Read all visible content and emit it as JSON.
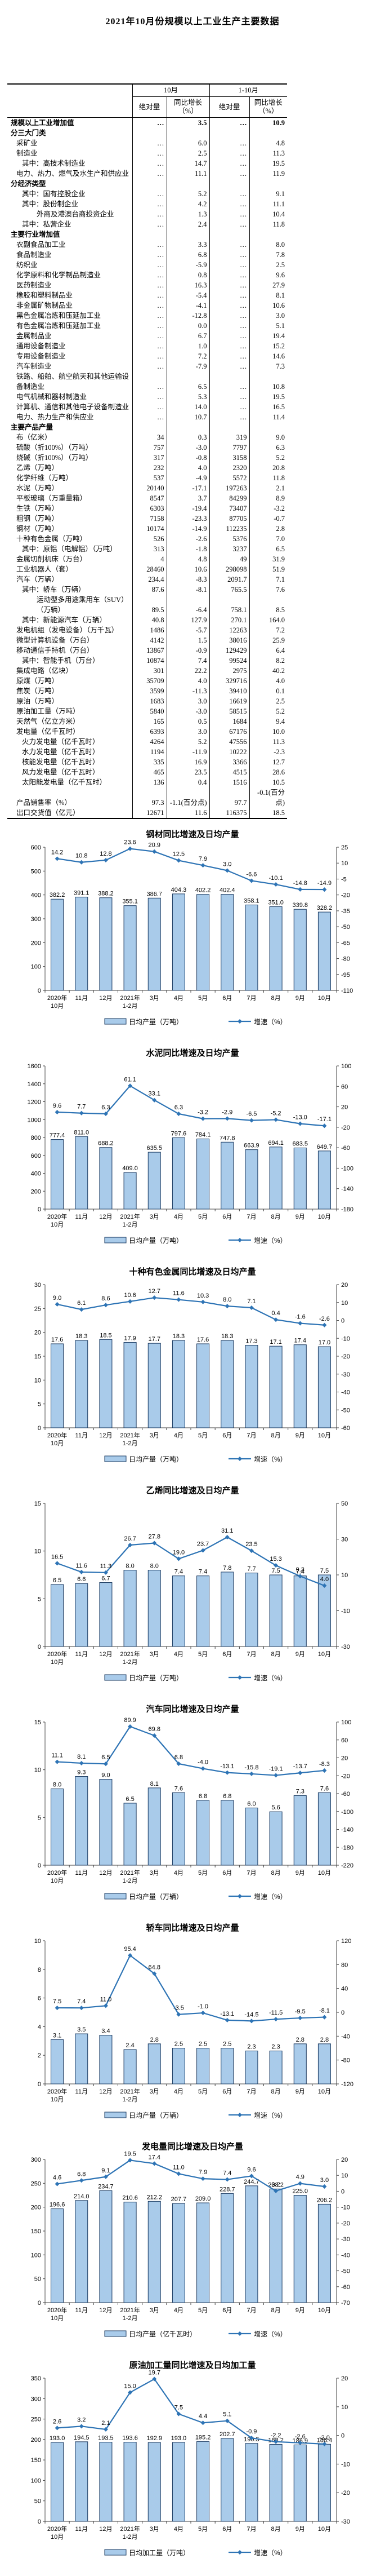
{
  "page": {
    "title": "2021年10月份规模以上工业生产主要数据"
  },
  "colors": {
    "bar_fill": "#A9CBEA",
    "bar_stroke": "#17375E",
    "line": "#2E74B5",
    "axis": "#404040",
    "text": "#000000"
  },
  "table": {
    "header": {
      "groups": [
        "10月",
        "1-10月"
      ],
      "sub": [
        "绝对量",
        "同比增长\n（%）",
        "绝对量",
        "同比增长\n（%）"
      ]
    },
    "rows": [
      [
        0,
        1,
        "规模以上工业增加值",
        "…",
        "3.5",
        "…",
        "10.9"
      ],
      [
        0,
        1,
        "分三大门类",
        "",
        "",
        "",
        ""
      ],
      [
        1,
        0,
        "采矿业",
        "…",
        "6.0",
        "…",
        "4.8"
      ],
      [
        1,
        0,
        "制造业",
        "…",
        "2.5",
        "…",
        "11.3"
      ],
      [
        2,
        0,
        "其中：高技术制造业",
        "…",
        "14.7",
        "…",
        "19.5"
      ],
      [
        1,
        0,
        "电力、热力、燃气及水生产和供应业",
        "…",
        "11.1",
        "…",
        "11.9"
      ],
      [
        0,
        1,
        "分经济类型",
        "",
        "",
        "",
        ""
      ],
      [
        2,
        0,
        "其中：国有控股企业",
        "…",
        "5.2",
        "…",
        "9.1"
      ],
      [
        2,
        0,
        "其中：股份制企业",
        "…",
        "4.2",
        "…",
        "11.1"
      ],
      [
        3,
        0,
        "外商及港澳台商投资企业",
        "…",
        "1.3",
        "…",
        "10.4"
      ],
      [
        2,
        0,
        "其中：私营企业",
        "…",
        "2.4",
        "…",
        "11.8"
      ],
      [
        0,
        1,
        "主要行业增加值",
        "",
        "",
        "",
        ""
      ],
      [
        1,
        0,
        "农副食品加工业",
        "…",
        "3.3",
        "…",
        "8.0"
      ],
      [
        1,
        0,
        "食品制造业",
        "…",
        "6.8",
        "…",
        "7.8"
      ],
      [
        1,
        0,
        "纺织业",
        "…",
        "-5.9",
        "…",
        "2.5"
      ],
      [
        1,
        0,
        "化学原料和化学制品制造业",
        "…",
        "0.8",
        "…",
        "9.6"
      ],
      [
        1,
        0,
        "医药制造业",
        "…",
        "16.3",
        "…",
        "27.9"
      ],
      [
        1,
        0,
        "橡胶和塑料制品业",
        "…",
        "-5.4",
        "…",
        "8.1"
      ],
      [
        1,
        0,
        "非金属矿物制品业",
        "…",
        "-4.1",
        "…",
        "10.6"
      ],
      [
        1,
        0,
        "黑色金属冶炼和压延加工业",
        "…",
        "-12.8",
        "…",
        "3.0"
      ],
      [
        1,
        0,
        "有色金属冶炼和压延加工业",
        "…",
        "0.0",
        "…",
        "5.1"
      ],
      [
        1,
        0,
        "金属制品业",
        "…",
        "6.7",
        "…",
        "19.4"
      ],
      [
        1,
        0,
        "通用设备制造业",
        "…",
        "1.0",
        "…",
        "15.2"
      ],
      [
        1,
        0,
        "专用设备制造业",
        "…",
        "7.2",
        "…",
        "14.6"
      ],
      [
        1,
        0,
        "汽车制造业",
        "…",
        "-7.9",
        "…",
        "7.3"
      ],
      [
        1,
        0,
        "铁路、船舶、航空航天和其他运输设备制造业",
        "…",
        "6.5",
        "…",
        "10.8"
      ],
      [
        1,
        0,
        "电气机械和器材制造业",
        "…",
        "5.3",
        "…",
        "19.5"
      ],
      [
        1,
        0,
        "计算机、通信和其他电子设备制造业",
        "…",
        "14.0",
        "…",
        "16.5"
      ],
      [
        1,
        0,
        "电力、热力生产和供应业",
        "…",
        "10.7",
        "…",
        "11.4"
      ],
      [
        0,
        1,
        "主要产品产量",
        "",
        "",
        "",
        ""
      ],
      [
        1,
        0,
        "布（亿米）",
        "34",
        "0.3",
        "319",
        "9.0"
      ],
      [
        1,
        0,
        "硫酸（折100%）（万吨）",
        "757",
        "-3.0",
        "7797",
        "6.3"
      ],
      [
        1,
        0,
        "烧碱（折100%）（万吨）",
        "317",
        "-0.8",
        "3158",
        "5.2"
      ],
      [
        1,
        0,
        "乙烯（万吨）",
        "232",
        "4.0",
        "2320",
        "20.8"
      ],
      [
        1,
        0,
        "化学纤维（万吨）",
        "537",
        "-4.9",
        "5572",
        "11.8"
      ],
      [
        1,
        0,
        "水泥（万吨）",
        "20140",
        "-17.1",
        "197263",
        "2.1"
      ],
      [
        1,
        0,
        "平板玻璃（万重量箱）",
        "8547",
        "3.7",
        "84299",
        "8.9"
      ],
      [
        1,
        0,
        "生铁（万吨）",
        "6303",
        "-19.4",
        "73407",
        "-3.2"
      ],
      [
        1,
        0,
        "粗钢（万吨）",
        "7158",
        "-23.3",
        "87705",
        "-0.7"
      ],
      [
        1,
        0,
        "钢材（万吨）",
        "10174",
        "-14.9",
        "112235",
        "2.8"
      ],
      [
        1,
        0,
        "十种有色金属（万吨）",
        "526",
        "-2.6",
        "5376",
        "7.0"
      ],
      [
        2,
        0,
        "其中：原铝（电解铝）（万吨）",
        "313",
        "-1.8",
        "3237",
        "6.5"
      ],
      [
        1,
        0,
        "金属切削机床（万台）",
        "4",
        "4.8",
        "49",
        "31.9"
      ],
      [
        1,
        0,
        "工业机器人（套）",
        "28460",
        "10.6",
        "298098",
        "51.9"
      ],
      [
        1,
        0,
        "汽车（万辆）",
        "234.4",
        "-8.3",
        "2091.7",
        "7.1"
      ],
      [
        2,
        0,
        "其中：轿车（万辆）",
        "87.6",
        "-8.1",
        "765.5",
        "7.6"
      ],
      [
        3,
        0,
        "运动型多用途乘用车（SUV）（万辆）",
        "89.5",
        "-6.4",
        "758.1",
        "8.5"
      ],
      [
        2,
        0,
        "其中：新能源汽车（万辆）",
        "40.8",
        "127.9",
        "270.1",
        "164.0"
      ],
      [
        1,
        0,
        "发电机组（发电设备）（万千瓦）",
        "1486",
        "-5.7",
        "12263",
        "7.2"
      ],
      [
        1,
        0,
        "微型计算机设备（万台）",
        "4142",
        "1.5",
        "38016",
        "25.9"
      ],
      [
        1,
        0,
        "移动通信手持机（万台）",
        "13867",
        "-0.9",
        "129429",
        "6.4"
      ],
      [
        2,
        0,
        "其中：智能手机（万台）",
        "10874",
        "7.4",
        "99524",
        "8.2"
      ],
      [
        1,
        0,
        "集成电路（亿块）",
        "301",
        "22.2",
        "2975",
        "40.2"
      ],
      [
        1,
        0,
        "原煤（万吨）",
        "35709",
        "4.0",
        "329716",
        "4.0"
      ],
      [
        1,
        0,
        "焦炭（万吨）",
        "3599",
        "-11.3",
        "39410",
        "0.1"
      ],
      [
        1,
        0,
        "原油（万吨）",
        "1683",
        "3.0",
        "16619",
        "2.5"
      ],
      [
        1,
        0,
        "原油加工量（万吨）",
        "5840",
        "-3.0",
        "58515",
        "5.2"
      ],
      [
        1,
        0,
        "天然气（亿立方米）",
        "165",
        "0.5",
        "1684",
        "9.4"
      ],
      [
        1,
        0,
        "发电量（亿千瓦时）",
        "6393",
        "3.0",
        "67176",
        "10.0"
      ],
      [
        2,
        0,
        "火力发电量（亿千瓦时）",
        "4264",
        "5.2",
        "47556",
        "11.3"
      ],
      [
        2,
        0,
        "水力发电量（亿千瓦时）",
        "1194",
        "-11.9",
        "10222",
        "-2.3"
      ],
      [
        2,
        0,
        "核能发电量（亿千瓦时）",
        "335",
        "16.9",
        "3366",
        "12.7"
      ],
      [
        2,
        0,
        "风力发电量（亿千瓦时）",
        "465",
        "23.5",
        "4515",
        "28.6"
      ],
      [
        2,
        0,
        "太阳能发电量（亿千瓦时）",
        "136",
        "0.4",
        "1516",
        "10.5"
      ],
      [
        1,
        0,
        "产品销售率（%）",
        "97.3",
        "-1.1(百分点)",
        "97.7",
        "-0.1(百分点)"
      ],
      [
        1,
        0,
        "出口交货值（亿元）",
        "12671",
        "11.6",
        "116375",
        "18.5"
      ]
    ]
  },
  "chart_data": [
    {
      "type": "bar+line",
      "title": "钢材同比增速及日均产量",
      "categories": [
        [
          "2020年",
          "10月"
        ],
        [
          "11月"
        ],
        [
          "12月"
        ],
        [
          "2021年",
          "1-2月"
        ],
        [
          "3月"
        ],
        [
          "4月"
        ],
        [
          "5月"
        ],
        [
          "6月"
        ],
        [
          "7月"
        ],
        [
          "8月"
        ],
        [
          "9月"
        ],
        [
          "10月"
        ]
      ],
      "bar_series": {
        "name": "日均产量（万吨）",
        "values": [
          "382.2",
          "391.1",
          "388.2",
          "355.1",
          "386.7",
          "404.3",
          "402.2",
          "402.4",
          "358.1",
          "351.0",
          "339.8",
          "328.2"
        ]
      },
      "line_series": {
        "name": "增速（%）",
        "values": [
          "14.2",
          "10.8",
          "12.8",
          "23.6",
          "20.9",
          "12.5",
          "7.9",
          "3.0",
          "-6.6",
          "-10.1",
          "-14.8",
          "-14.9"
        ]
      },
      "left_ticks": [
        600,
        500,
        400,
        300,
        200,
        100,
        0
      ],
      "right_ticks": [
        25,
        10,
        -5,
        -20,
        -35,
        -50,
        -65,
        -80,
        -95,
        -110
      ]
    },
    {
      "type": "bar+line",
      "title": "水泥同比增速及日均产量",
      "categories": [
        [
          "2020年",
          "10月"
        ],
        [
          "11月"
        ],
        [
          "12月"
        ],
        [
          "2021年",
          "1-2月"
        ],
        [
          "3月"
        ],
        [
          "4月"
        ],
        [
          "5月"
        ],
        [
          "6月"
        ],
        [
          "7月"
        ],
        [
          "8月"
        ],
        [
          "9月"
        ],
        [
          "10月"
        ]
      ],
      "bar_series": {
        "name": "日均产量（万吨）",
        "values": [
          "777.4",
          "811.0",
          "688.2",
          "409.0",
          "635.5",
          "797.6",
          "784.1",
          "747.8",
          "663.9",
          "694.1",
          "683.5",
          "649.7"
        ]
      },
      "line_series": {
        "name": "增速（%）",
        "values": [
          "9.6",
          "7.7",
          "6.3",
          "61.1",
          "33.1",
          "6.3",
          "-3.2",
          "-2.9",
          "-6.5",
          "-5.2",
          "-13.0",
          "-17.1"
        ]
      },
      "left_ticks": [
        1600,
        1400,
        1200,
        1000,
        800,
        600,
        400,
        200,
        0
      ],
      "right_ticks": [
        100,
        60,
        20,
        -20,
        -60,
        -100,
        -140,
        -180
      ]
    },
    {
      "type": "bar+line",
      "title": "十种有色金属同比增速及日均产量",
      "categories": [
        [
          "2020年",
          "10月"
        ],
        [
          "11月"
        ],
        [
          "12月"
        ],
        [
          "2021年",
          "1-2月"
        ],
        [
          "3月"
        ],
        [
          "4月"
        ],
        [
          "5月"
        ],
        [
          "6月"
        ],
        [
          "7月"
        ],
        [
          "8月"
        ],
        [
          "9月"
        ],
        [
          "10月"
        ]
      ],
      "bar_series": {
        "name": "日均产量（万吨）",
        "values": [
          "17.6",
          "18.3",
          "18.5",
          "17.9",
          "17.7",
          "18.3",
          "17.6",
          "18.3",
          "17.3",
          "17.1",
          "17.4",
          "17.0"
        ]
      },
      "line_series": {
        "name": "增速（%）",
        "values": [
          "9.0",
          "6.1",
          "8.6",
          "10.6",
          "12.7",
          "11.6",
          "10.3",
          "8.0",
          "7.1",
          "0.4",
          "-1.6",
          "-2.6"
        ]
      },
      "left_ticks": [
        30,
        25,
        20,
        15,
        10,
        5,
        0
      ],
      "right_ticks": [
        20,
        10,
        0,
        -10,
        -20,
        -30,
        -40,
        -50,
        -60
      ]
    },
    {
      "type": "bar+line",
      "title": "乙烯同比增速及日均产量",
      "categories": [
        [
          "2020年",
          "10月"
        ],
        [
          "11月"
        ],
        [
          "12月"
        ],
        [
          "2021年",
          "1-2月"
        ],
        [
          "3月"
        ],
        [
          "4月"
        ],
        [
          "5月"
        ],
        [
          "6月"
        ],
        [
          "7月"
        ],
        [
          "8月"
        ],
        [
          "9月"
        ],
        [
          "10月"
        ]
      ],
      "bar_series": {
        "name": "日均产量（万吨）",
        "values": [
          "6.5",
          "6.6",
          "6.7",
          "8.0",
          "8.0",
          "7.4",
          "7.4",
          "7.8",
          "7.7",
          "7.5",
          "7.4",
          "7.5"
        ]
      },
      "line_series": {
        "name": "增速（%）",
        "values": [
          "16.5",
          "11.6",
          "11.3",
          "26.7",
          "27.8",
          "19.0",
          "23.7",
          "31.1",
          "23.5",
          "15.3",
          "9.3",
          "4.0"
        ]
      },
      "left_ticks": [
        15,
        10,
        5,
        0
      ],
      "right_ticks": [
        50,
        30,
        10,
        -10,
        -30
      ]
    },
    {
      "type": "bar+line",
      "title": "汽车同比增速及日均产量",
      "categories": [
        [
          "2020年",
          "10月"
        ],
        [
          "11月"
        ],
        [
          "12月"
        ],
        [
          "2021年",
          "1-2月"
        ],
        [
          "3月"
        ],
        [
          "4月"
        ],
        [
          "5月"
        ],
        [
          "6月"
        ],
        [
          "7月"
        ],
        [
          "8月"
        ],
        [
          "9月"
        ],
        [
          "10月"
        ]
      ],
      "bar_series": {
        "name": "日均产量（万辆）",
        "values": [
          "8.0",
          "9.3",
          "9.0",
          "6.5",
          "8.1",
          "7.6",
          "6.8",
          "6.8",
          "6.0",
          "5.6",
          "7.3",
          "7.6"
        ]
      },
      "line_series": {
        "name": "增速（%）",
        "values": [
          "11.1",
          "8.1",
          "6.5",
          "89.9",
          "69.8",
          "6.8",
          "-4.0",
          "-13.1",
          "-15.8",
          "-19.1",
          "-13.7",
          "-8.3"
        ]
      },
      "left_ticks": [
        15,
        10,
        5,
        0
      ],
      "right_ticks": [
        100,
        60,
        20,
        -20,
        -60,
        -100,
        -140,
        -180,
        -220
      ]
    },
    {
      "type": "bar+line",
      "title": "轿车同比增速及日均产量",
      "categories": [
        [
          "2020年",
          "10月"
        ],
        [
          "11月"
        ],
        [
          "12月"
        ],
        [
          "2021年",
          "1-2月"
        ],
        [
          "3月"
        ],
        [
          "4月"
        ],
        [
          "5月"
        ],
        [
          "6月"
        ],
        [
          "7月"
        ],
        [
          "8月"
        ],
        [
          "9月"
        ],
        [
          "10月"
        ]
      ],
      "bar_series": {
        "name": "日均产量（万辆）",
        "values": [
          "3.1",
          "3.5",
          "3.4",
          "2.4",
          "2.8",
          "2.5",
          "2.5",
          "2.5",
          "2.3",
          "2.3",
          "2.8",
          "2.8"
        ]
      },
      "line_series": {
        "name": "增速（%）",
        "values": [
          "7.5",
          "7.4",
          "11.0",
          "95.4",
          "64.8",
          "-3.5",
          "-1.0",
          "-13.1",
          "-14.5",
          "-11.5",
          "-9.5",
          "-8.1"
        ]
      },
      "left_ticks": [
        10,
        8,
        6,
        4,
        2,
        0
      ],
      "right_ticks": [
        120,
        80,
        40,
        0,
        -40,
        -80,
        -120
      ]
    },
    {
      "type": "bar+line",
      "title": "发电量同比增速及日均产量",
      "categories": [
        [
          "2020年",
          "10月"
        ],
        [
          "11月"
        ],
        [
          "12月"
        ],
        [
          "2021年",
          "1-2月"
        ],
        [
          "3月"
        ],
        [
          "4月"
        ],
        [
          "5月"
        ],
        [
          "6月"
        ],
        [
          "7月"
        ],
        [
          "8月"
        ],
        [
          "9月"
        ],
        [
          "10月"
        ]
      ],
      "bar_series": {
        "name": "日均产量（亿千瓦时）",
        "values": [
          "196.6",
          "214.0",
          "234.7",
          "210.6",
          "212.2",
          "207.7",
          "209.0",
          "228.7",
          "244.7",
          "238.2",
          "225.0",
          "206.2"
        ]
      },
      "line_series": {
        "name": "增速（%）",
        "values": [
          "4.6",
          "6.8",
          "9.1",
          "19.5",
          "17.4",
          "11.0",
          "7.9",
          "7.4",
          "9.6",
          "0.2",
          "4.9",
          "3.0"
        ]
      },
      "left_ticks": [
        300,
        250,
        200,
        150,
        100,
        50,
        0
      ],
      "right_ticks": [
        20,
        10,
        0,
        -10,
        -20,
        -30,
        -40,
        -50,
        -60,
        -70
      ]
    },
    {
      "type": "bar+line",
      "title": "原油加工量同比增速及日均加工量",
      "categories": [
        [
          "2020年",
          "10月"
        ],
        [
          "11月"
        ],
        [
          "12月"
        ],
        [
          "2021年",
          "1-2月"
        ],
        [
          "3月"
        ],
        [
          "4月"
        ],
        [
          "5月"
        ],
        [
          "6月"
        ],
        [
          "7月"
        ],
        [
          "8月"
        ],
        [
          "9月"
        ],
        [
          "10月"
        ]
      ],
      "bar_series": {
        "name": "日均加工量（万吨）",
        "values": [
          "193.0",
          "194.5",
          "193.5",
          "193.6",
          "192.9",
          "193.0",
          "195.2",
          "202.7",
          "190.5",
          "188.2",
          "186.9",
          "188.4"
        ]
      },
      "line_series": {
        "name": "增速（%）",
        "values": [
          "2.6",
          "3.2",
          "2.1",
          "15.0",
          "19.7",
          "7.5",
          "4.4",
          "5.1",
          "-0.9",
          "-2.2",
          "-2.6",
          "-3.0"
        ]
      },
      "left_ticks": [
        350,
        300,
        250,
        200,
        150,
        100,
        50,
        0
      ],
      "right_ticks": [
        20,
        10,
        0,
        -10,
        -20,
        -30
      ]
    }
  ]
}
